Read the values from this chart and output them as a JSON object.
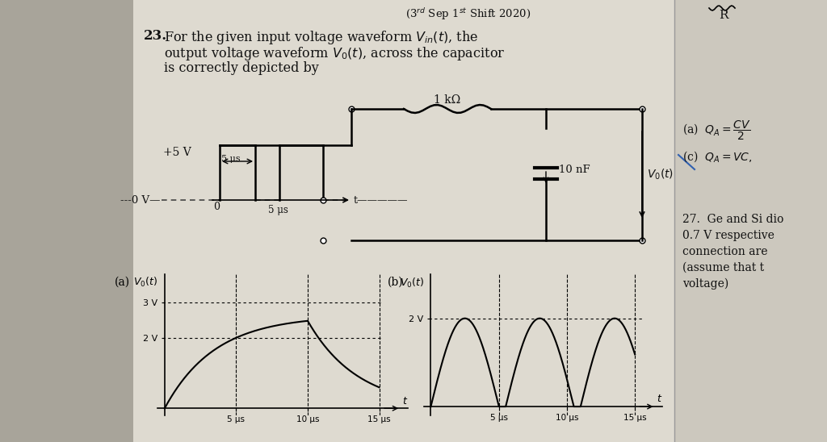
{
  "bg_color_left": "#b8b4aa",
  "bg_color_paper": "#dedad0",
  "bg_color_right": "#d0ccc2",
  "text_color": "#1a1a1a",
  "header_text": "(3ʳᵈ Sep 1ˢᵗ Shift 2020)",
  "resistor_label": "1 kΩ",
  "capacitor_label": "10 nF",
  "plus5v": "+5 V",
  "zero_v": "---0 V—",
  "label_5us_pulse": "5 μs",
  "label_5us_axis": "5 μs",
  "label_t": "t—————",
  "label_Vo": "V₀(t)",
  "label_0": "0",
  "plot_a_3v": "3 V",
  "plot_a_2v": "2 V",
  "plot_b_2v": "2 V",
  "xticks_a": [
    "5 μs",
    "10 μs",
    "15 μs"
  ],
  "xticks_b": [
    "5 μs",
    "10 μs",
    "15 μs"
  ],
  "right_R": "R",
  "right_qa": "(a)  $Q_A = \\dfrac{CV}{2}$",
  "right_qc": "(c)  $Q_A = VC,$",
  "right_27": "27.  Ge and Si dio",
  "right_07": "0.7 V respective",
  "right_conn": "connection are",
  "right_assume": "(assume that t",
  "right_volt": "voltage)"
}
